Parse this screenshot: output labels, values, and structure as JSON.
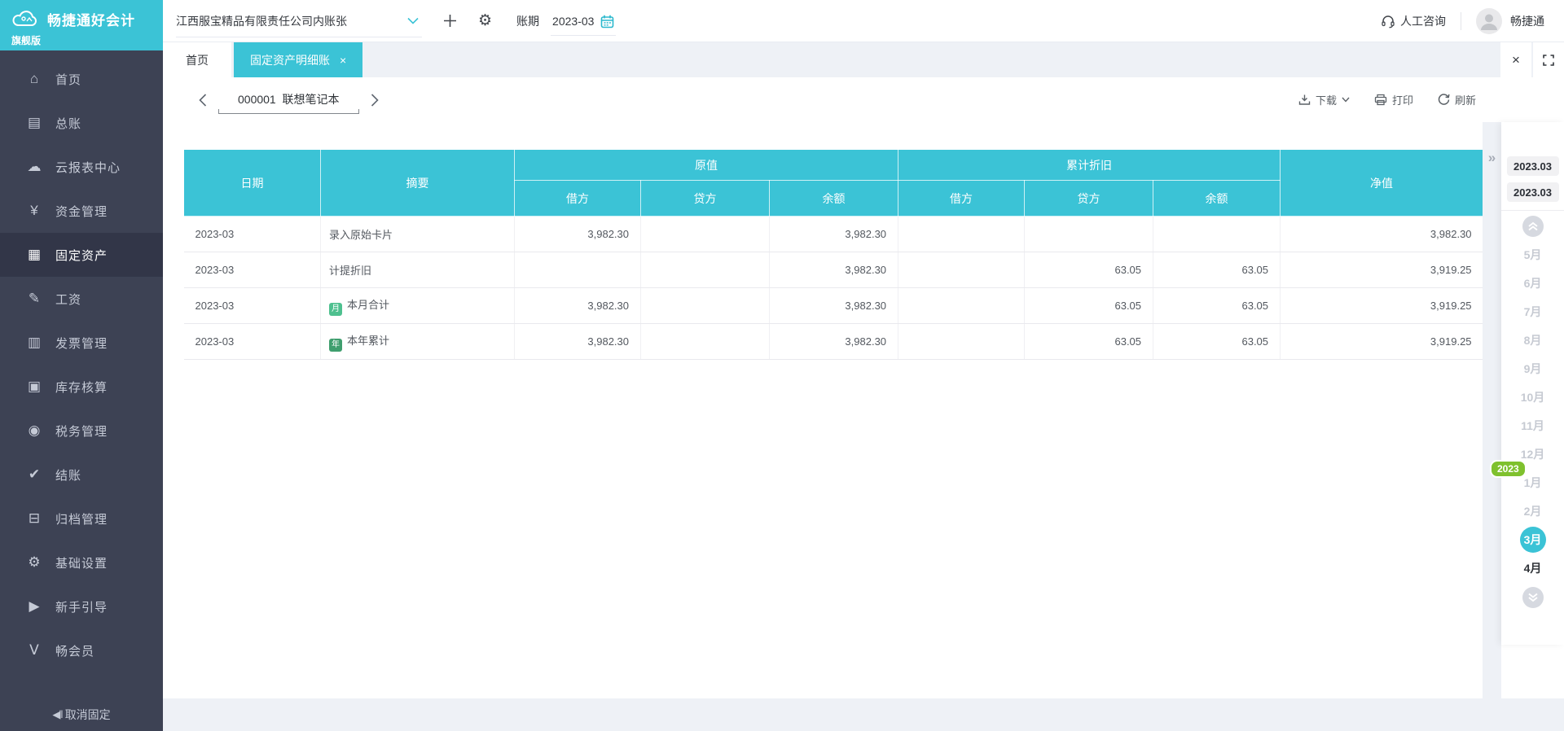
{
  "colors": {
    "accent": "#3bc3d6",
    "sidebar_bg": "#3d4254",
    "year_badge_green": "#7fc12e"
  },
  "brand": {
    "title": "畅捷通好会计",
    "subtitle": "旗舰版"
  },
  "sidebar": {
    "items": [
      {
        "id": "home",
        "label": "首页"
      },
      {
        "id": "general-ledger",
        "label": "总账"
      },
      {
        "id": "cloud-reports",
        "label": "云报表中心"
      },
      {
        "id": "funds",
        "label": "资金管理"
      },
      {
        "id": "fixed-assets",
        "label": "固定资产",
        "active": true
      },
      {
        "id": "payroll",
        "label": "工资"
      },
      {
        "id": "invoices",
        "label": "发票管理"
      },
      {
        "id": "inventory",
        "label": "库存核算"
      },
      {
        "id": "tax",
        "label": "税务管理"
      },
      {
        "id": "closing",
        "label": "结账"
      },
      {
        "id": "archive",
        "label": "归档管理"
      },
      {
        "id": "settings",
        "label": "基础设置"
      },
      {
        "id": "guide",
        "label": "新手引导"
      },
      {
        "id": "membership",
        "label": "畅会员"
      }
    ],
    "unpin_label": "取消固定"
  },
  "topbar": {
    "company": "江西服宝精品有限责任公司内账张",
    "period_label": "账期",
    "period_value": "2023-03",
    "support_label": "人工咨询",
    "user_name": "畅捷通"
  },
  "tabs": [
    {
      "label": "首页",
      "active": false
    },
    {
      "label": "固定资产明细账",
      "active": true,
      "closable": true
    }
  ],
  "toolbar": {
    "asset_code": "000001",
    "asset_name": "联想笔记本",
    "download_label": "下载",
    "print_label": "打印",
    "refresh_label": "刷新"
  },
  "table": {
    "header": {
      "date": "日期",
      "summary": "摘要",
      "original_value": "原值",
      "accumulated_depreciation": "累计折旧",
      "net_value": "净值",
      "debit": "借方",
      "credit": "贷方",
      "balance": "余额"
    },
    "rows": [
      {
        "date": "2023-03",
        "summary": "录入原始卡片",
        "icon": null,
        "orig_debit": "3,982.30",
        "orig_credit": "",
        "orig_balance": "3,982.30",
        "dep_debit": "",
        "dep_credit": "",
        "dep_balance": "",
        "net": "3,982.30"
      },
      {
        "date": "2023-03",
        "summary": "计提折旧",
        "icon": null,
        "orig_debit": "",
        "orig_credit": "",
        "orig_balance": "3,982.30",
        "dep_debit": "",
        "dep_credit": "63.05",
        "dep_balance": "63.05",
        "net": "3,919.25"
      },
      {
        "date": "2023-03",
        "summary": "本月合计",
        "icon": {
          "name": "month-total-icon",
          "char": "月",
          "color": "#4ec08f"
        },
        "orig_debit": "3,982.30",
        "orig_credit": "",
        "orig_balance": "3,982.30",
        "dep_debit": "",
        "dep_credit": "63.05",
        "dep_balance": "63.05",
        "net": "3,919.25"
      },
      {
        "date": "2023-03",
        "summary": "本年累计",
        "icon": {
          "name": "year-total-icon",
          "char": "年",
          "color": "#3f9e6e"
        },
        "orig_debit": "3,982.30",
        "orig_credit": "",
        "orig_balance": "3,982.30",
        "dep_debit": "",
        "dep_credit": "63.05",
        "dep_balance": "63.05",
        "net": "3,919.25"
      }
    ]
  },
  "month_panel": {
    "chips": [
      "2023.03",
      "2023.03"
    ],
    "months": [
      {
        "label": "5月",
        "state": "disabled"
      },
      {
        "label": "6月",
        "state": "disabled"
      },
      {
        "label": "7月",
        "state": "disabled"
      },
      {
        "label": "8月",
        "state": "disabled"
      },
      {
        "label": "9月",
        "state": "disabled"
      },
      {
        "label": "10月",
        "state": "disabled"
      },
      {
        "label": "11月",
        "state": "disabled"
      },
      {
        "label": "12月",
        "state": "disabled"
      },
      {
        "type": "year-badge",
        "label": "2023"
      },
      {
        "label": "1月",
        "state": "disabled"
      },
      {
        "label": "2月",
        "state": "disabled"
      },
      {
        "label": "3月",
        "state": "active"
      },
      {
        "label": "4月",
        "state": "normal"
      }
    ]
  }
}
